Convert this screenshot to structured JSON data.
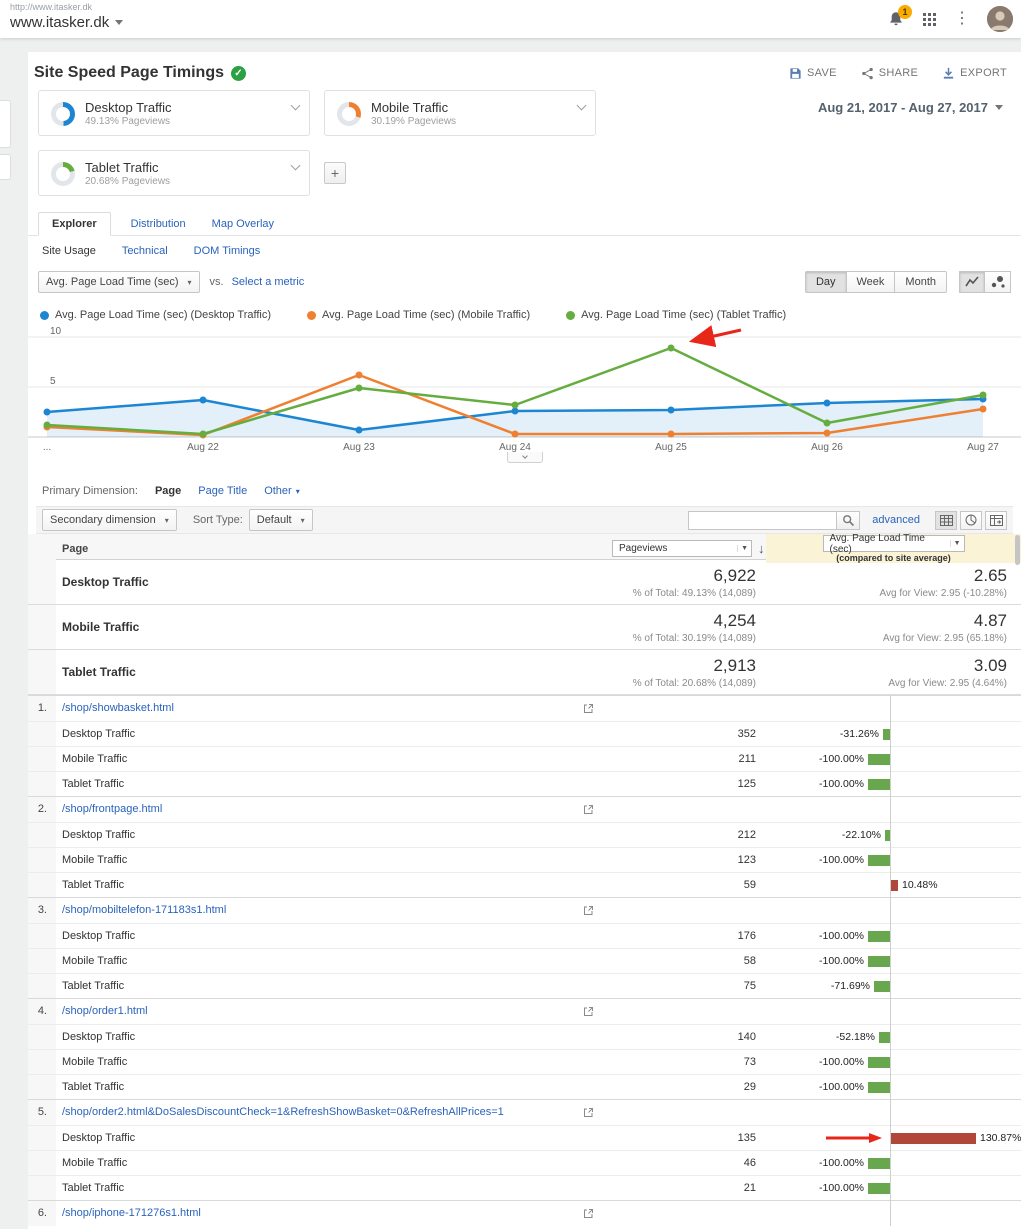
{
  "topbar": {
    "url": "http://www.itasker.dk",
    "account_name": "www.itasker.dk",
    "notification_count": "1"
  },
  "header": {
    "title": "Site Speed Page Timings",
    "save_label": "SAVE",
    "share_label": "SHARE",
    "export_label": "EXPORT",
    "date_range": "Aug 21, 2017 - Aug 27, 2017"
  },
  "segments": {
    "cards": [
      {
        "name": "Desktop Traffic",
        "detail": "49.13% Pageviews",
        "pct": 49.13,
        "color": "#1c86d2"
      },
      {
        "name": "Mobile Traffic",
        "detail": "30.19% Pageviews",
        "pct": 30.19,
        "color": "#ef8031"
      },
      {
        "name": "Tablet Traffic",
        "detail": "20.68% Pageviews",
        "pct": 20.68,
        "color": "#65ad3f"
      }
    ],
    "add_label": "+"
  },
  "tabs": {
    "items": [
      "Explorer",
      "Distribution",
      "Map Overlay"
    ],
    "active": "Explorer"
  },
  "subtabs": {
    "items": [
      "Site Usage",
      "Technical",
      "DOM Timings"
    ],
    "active": "Site Usage"
  },
  "toolbar": {
    "metric_dropdown": "Avg. Page Load Time (sec)",
    "vs": "vs.",
    "select_metric": "Select a metric",
    "granularity": [
      "Day",
      "Week",
      "Month"
    ],
    "active_granularity": "Day"
  },
  "chart_data": {
    "type": "line",
    "x": [
      "...",
      "Aug 22",
      "Aug 23",
      "Aug 24",
      "Aug 25",
      "Aug 26",
      "Aug 27"
    ],
    "ylim": [
      0,
      10
    ],
    "yticks": [
      5,
      10
    ],
    "grid": "horizontal",
    "legend_position": "top",
    "series": [
      {
        "name": "Avg. Page Load Time (sec) (Desktop Traffic)",
        "color": "#1c86d2",
        "fill": true,
        "values": [
          2.5,
          3.7,
          0.7,
          2.6,
          2.7,
          3.4,
          3.8
        ]
      },
      {
        "name": "Avg. Page Load Time (sec) (Mobile Traffic)",
        "color": "#ef8031",
        "fill": false,
        "values": [
          1.0,
          0.2,
          6.2,
          0.3,
          0.3,
          0.4,
          2.8
        ]
      },
      {
        "name": "Avg. Page Load Time (sec) (Tablet Traffic)",
        "color": "#65ad3f",
        "fill": false,
        "values": [
          1.2,
          0.3,
          4.9,
          3.2,
          8.9,
          1.4,
          4.2
        ]
      }
    ],
    "annotations": [
      "red arrow pointing at Tablet Traffic peak on Aug 25"
    ]
  },
  "dimensions": {
    "label": "Primary Dimension:",
    "items": [
      "Page",
      "Page Title",
      "Other"
    ],
    "active": "Page"
  },
  "table_toolbar": {
    "secondary_dimension": "Secondary dimension",
    "sort_type_label": "Sort Type:",
    "sort_type_value": "Default",
    "search_value": "",
    "advanced": "advanced"
  },
  "table": {
    "columns": {
      "page": "Page",
      "pageviews": "Pageviews",
      "metric": "Avg. Page Load Time (sec)",
      "metric_note": "(compared to site average)"
    },
    "summary_rows": [
      {
        "label": "Desktop Traffic",
        "pageviews": "6,922",
        "pageviews_note": "% of Total: 49.13% (14,089)",
        "metric": "2.65",
        "metric_note": "Avg for View: 2.95 (-10.28%)"
      },
      {
        "label": "Mobile Traffic",
        "pageviews": "4,254",
        "pageviews_note": "% of Total: 30.19% (14,089)",
        "metric": "4.87",
        "metric_note": "Avg for View: 2.95 (65.18%)"
      },
      {
        "label": "Tablet Traffic",
        "pageviews": "2,913",
        "pageviews_note": "% of Total: 20.68% (14,089)",
        "metric": "3.09",
        "metric_note": "Avg for View: 2.95 (4.64%)"
      }
    ],
    "rows": [
      {
        "num": "1.",
        "page": "/shop/showbasket.html",
        "entries": [
          {
            "label": "Desktop Traffic",
            "pageviews": "352",
            "pct": -31.26,
            "pct_label": "-31.26%"
          },
          {
            "label": "Mobile Traffic",
            "pageviews": "211",
            "pct": -100,
            "pct_label": "-100.00%"
          },
          {
            "label": "Tablet Traffic",
            "pageviews": "125",
            "pct": -100,
            "pct_label": "-100.00%"
          }
        ]
      },
      {
        "num": "2.",
        "page": "/shop/frontpage.html",
        "entries": [
          {
            "label": "Desktop Traffic",
            "pageviews": "212",
            "pct": -22.1,
            "pct_label": "-22.10%"
          },
          {
            "label": "Mobile Traffic",
            "pageviews": "123",
            "pct": -100,
            "pct_label": "-100.00%"
          },
          {
            "label": "Tablet Traffic",
            "pageviews": "59",
            "pct": 10.48,
            "pct_label": "10.48%"
          }
        ]
      },
      {
        "num": "3.",
        "page": "/shop/mobiltelefon-171183s1.html",
        "entries": [
          {
            "label": "Desktop Traffic",
            "pageviews": "176",
            "pct": -100,
            "pct_label": "-100.00%"
          },
          {
            "label": "Mobile Traffic",
            "pageviews": "58",
            "pct": -100,
            "pct_label": "-100.00%"
          },
          {
            "label": "Tablet Traffic",
            "pageviews": "75",
            "pct": -71.69,
            "pct_label": "-71.69%"
          }
        ]
      },
      {
        "num": "4.",
        "page": "/shop/order1.html",
        "entries": [
          {
            "label": "Desktop Traffic",
            "pageviews": "140",
            "pct": -52.18,
            "pct_label": "-52.18%"
          },
          {
            "label": "Mobile Traffic",
            "pageviews": "73",
            "pct": -100,
            "pct_label": "-100.00%"
          },
          {
            "label": "Tablet Traffic",
            "pageviews": "29",
            "pct": -100,
            "pct_label": "-100.00%"
          }
        ]
      },
      {
        "num": "5.",
        "page": "/shop/order2.html&DoSalesDiscountCheck=1&RefreshShowBasket=0&RefreshAllPrices=1",
        "entries": [
          {
            "label": "Desktop Traffic",
            "pageviews": "135",
            "pct": 130.87,
            "pct_label": "130.87%",
            "arrow": true
          },
          {
            "label": "Mobile Traffic",
            "pageviews": "46",
            "pct": -100,
            "pct_label": "-100.00%"
          },
          {
            "label": "Tablet Traffic",
            "pageviews": "21",
            "pct": -100,
            "pct_label": "-100.00%"
          }
        ]
      },
      {
        "num": "6.",
        "page": "/shop/iphone-171276s1.html",
        "entries": []
      }
    ]
  },
  "colors": {
    "positive_bar": "#b1473a",
    "negative_bar": "#69a74e",
    "link": "#2a63bc",
    "arrow": "#e8271b",
    "metric_header_bg": "#fbf3d5"
  },
  "icons": {
    "notification-bell-icon": "bell glyph with orange badge",
    "apps-grid-icon": "3x3 dot grid",
    "more-vertical-icon": "vertical ellipsis",
    "avatar": "user photo circle",
    "save-icon": "floppy disk",
    "share-icon": "share nodes",
    "export-icon": "download arrow",
    "verified-icon": "green circle check",
    "search-icon": "magnifier",
    "external-link-icon": "box with arrow",
    "line-chart-icon": "polyline",
    "motion-chart-icon": "scatter dots",
    "table-view-icon": "grid",
    "percentage-view-icon": "pie",
    "pivot-view-icon": "pivot table"
  }
}
